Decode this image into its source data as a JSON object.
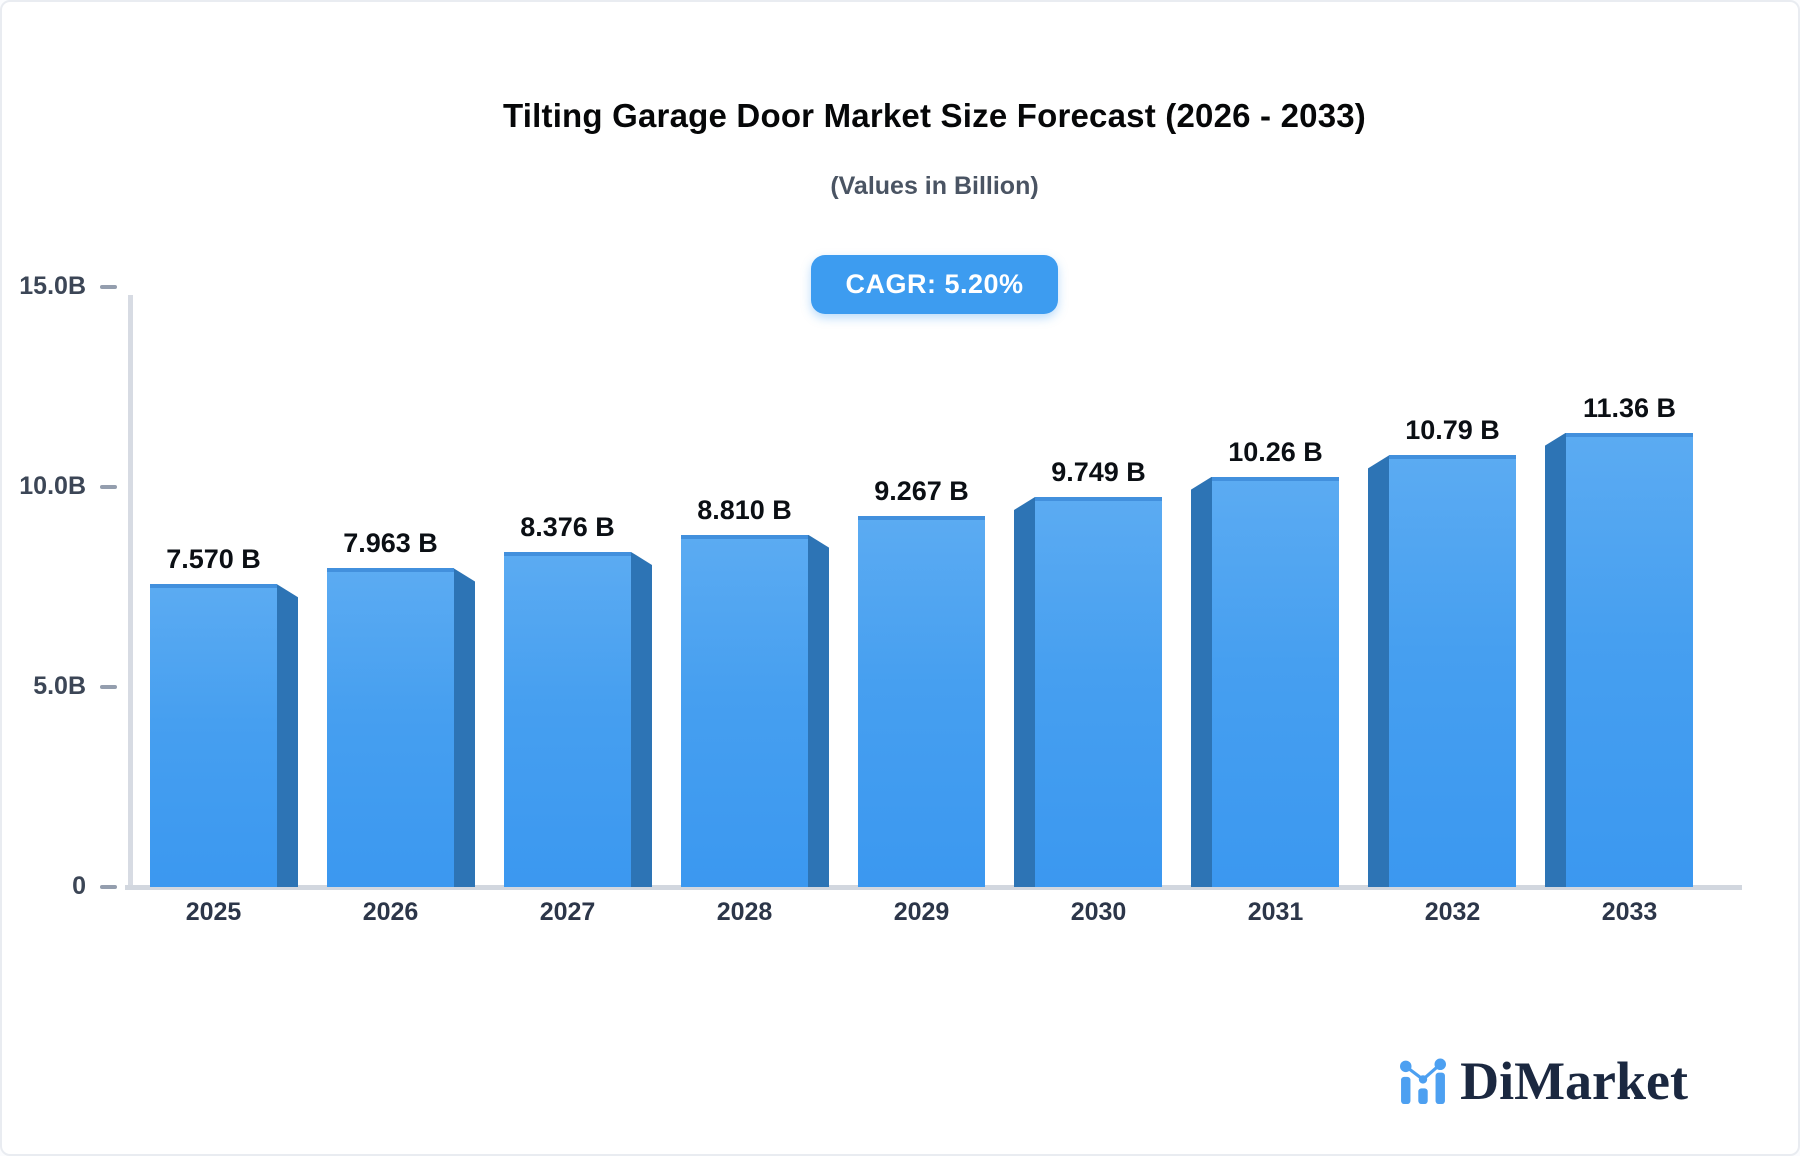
{
  "chart_data": {
    "type": "bar",
    "title": "Tilting Garage Door Market Size Forecast (2026 - 2033)",
    "subtitle": "(Values in Billion)",
    "badge_label": "CAGR: 5.20%",
    "categories": [
      "2025",
      "2026",
      "2027",
      "2028",
      "2029",
      "2030",
      "2031",
      "2032",
      "2033"
    ],
    "values": [
      7.57,
      7.963,
      8.376,
      8.81,
      9.267,
      9.749,
      10.26,
      10.79,
      11.36
    ],
    "value_labels": [
      "7.570 B",
      "7.963 B",
      "8.376 B",
      "8.810 B",
      "9.267 B",
      "9.749 B",
      "10.26 B",
      "10.79 B",
      "11.36 B"
    ],
    "ylim": [
      0,
      15
    ],
    "yticks": [
      {
        "value": 0,
        "label": "0"
      },
      {
        "value": 5,
        "label": "5.0B"
      },
      {
        "value": 10,
        "label": "10.0B"
      },
      {
        "value": 15,
        "label": "15.0B"
      }
    ],
    "legend": null,
    "grid": false,
    "colors": {
      "bar_top": "#5babf2",
      "bar_bottom": "#3b98f0",
      "bar_side": "#2d74b5",
      "badge_bg": "#3d9cf0",
      "badge_text": "#ffffff",
      "axis_line": "#d5d9e1",
      "tick": "#949eae",
      "title_text": "#060708",
      "subtitle_text": "#4a5463",
      "brand_blue": "#4da0f1",
      "brand_navy": "#1b2840"
    }
  },
  "footer": {
    "brand_name": "DiMarket"
  }
}
